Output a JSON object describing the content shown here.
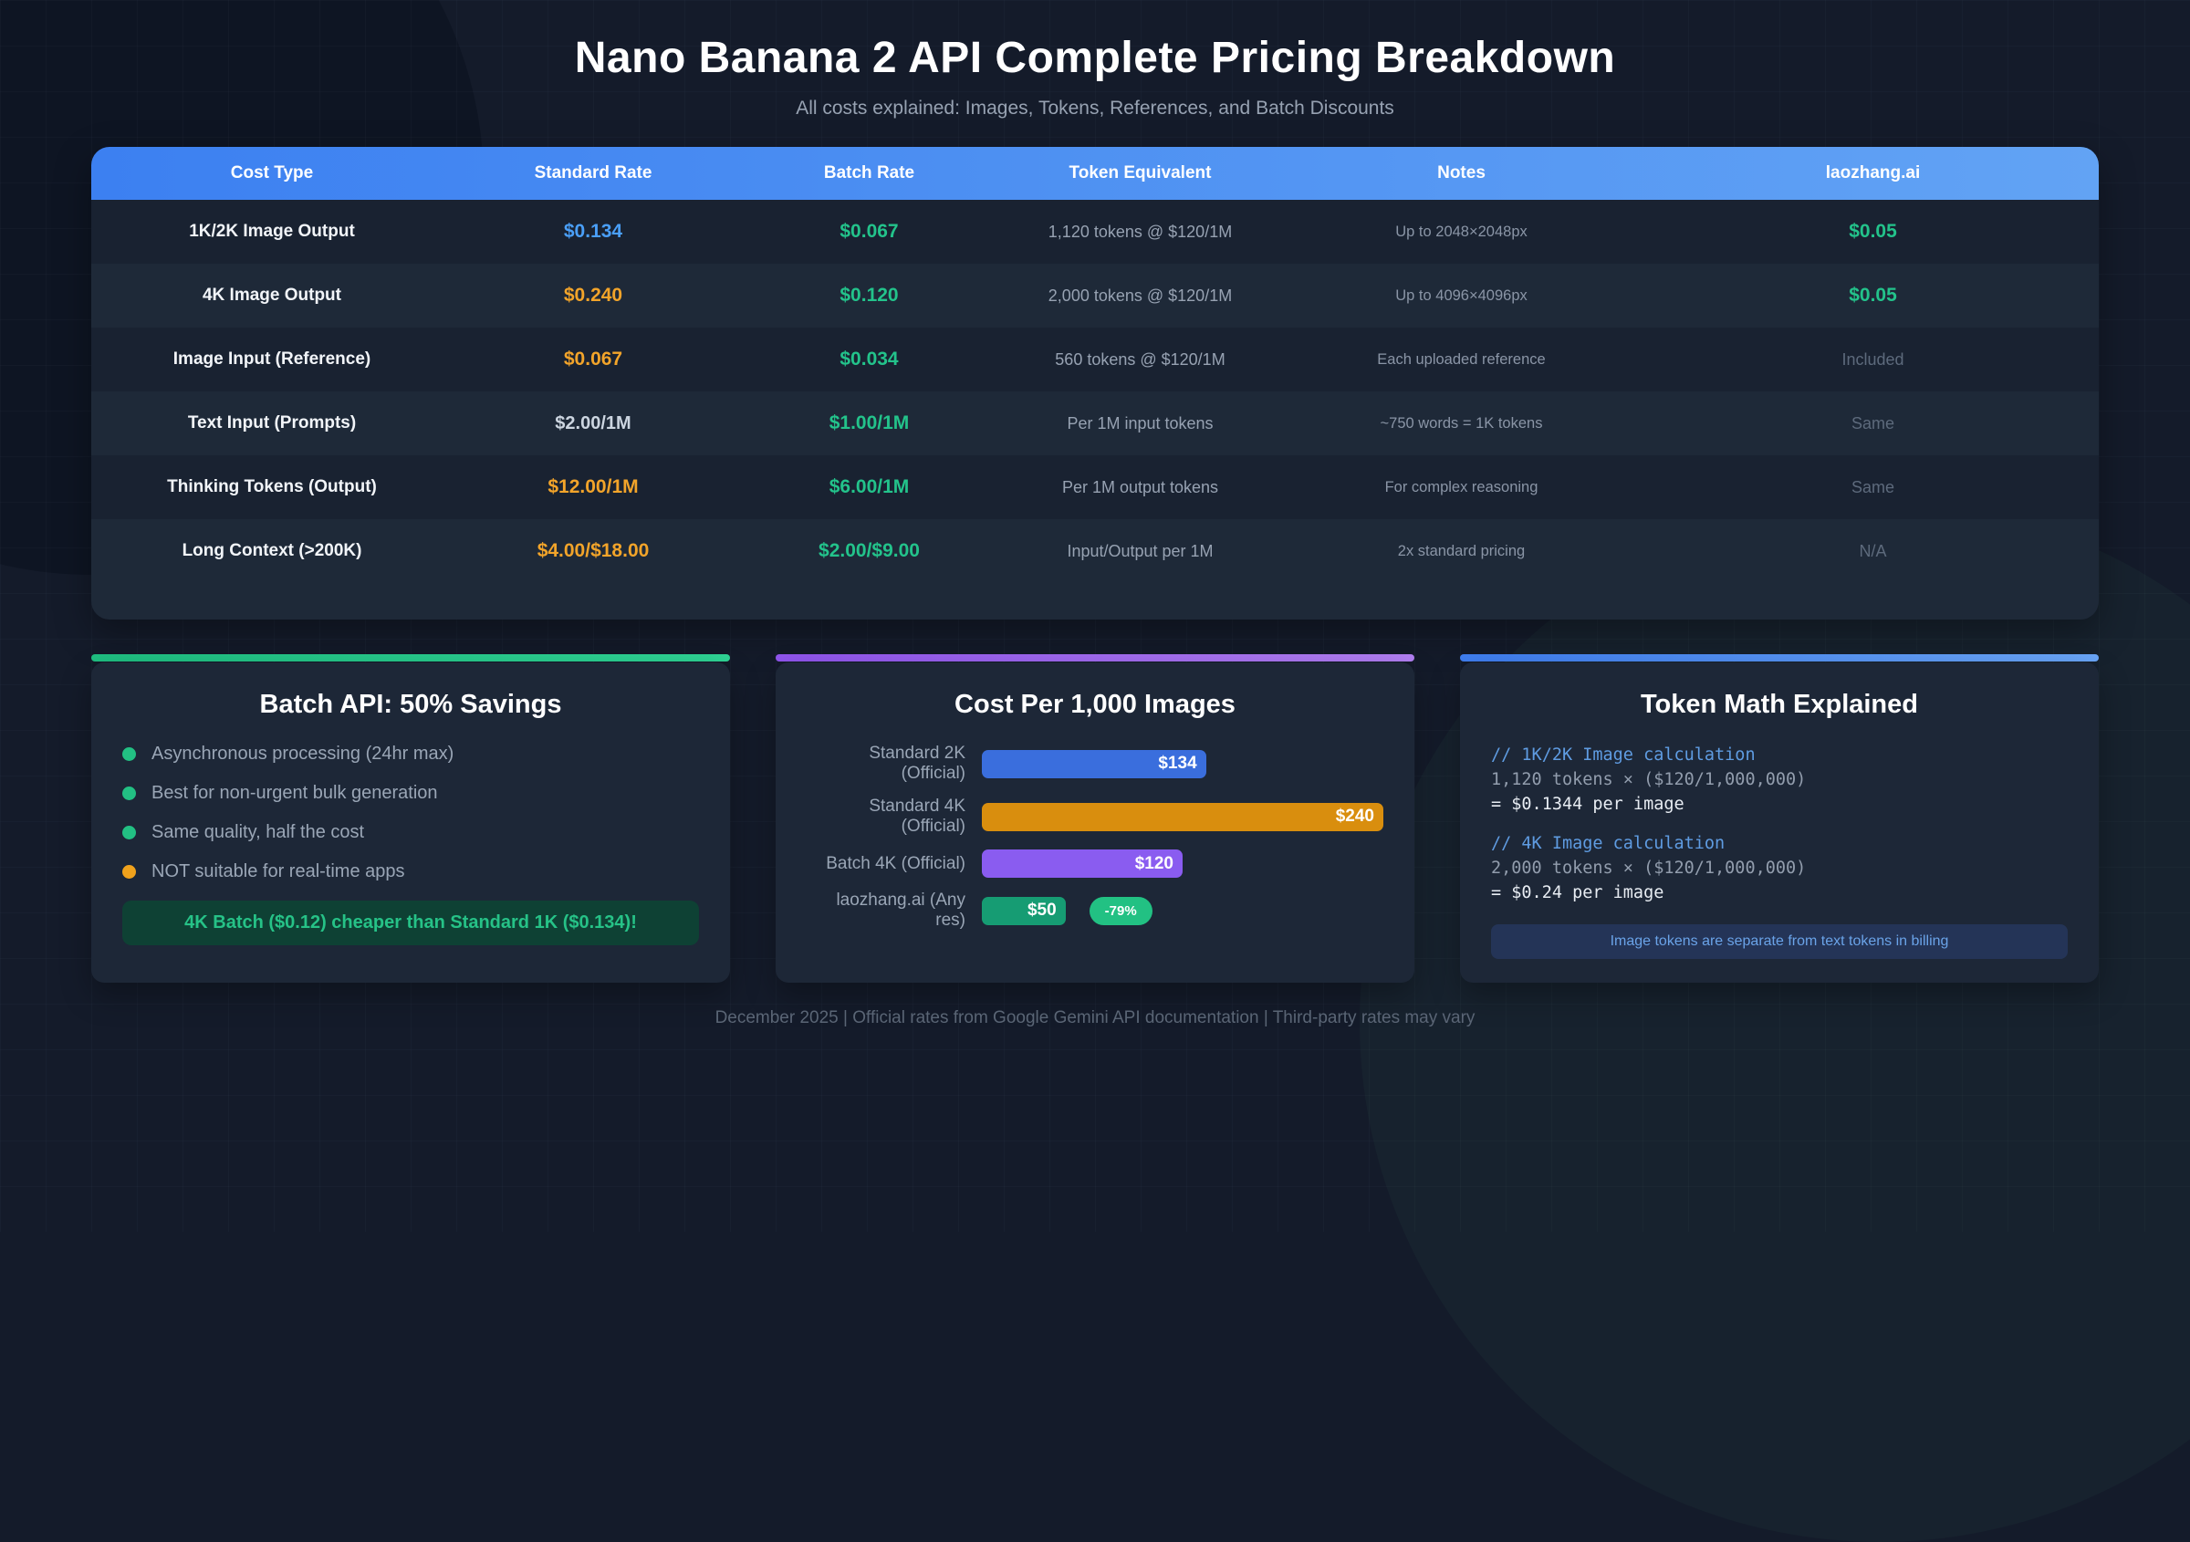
{
  "page": {
    "title": "Nano Banana 2 API Complete Pricing Breakdown",
    "subtitle": "All costs explained: Images, Tokens, References, and Batch Discounts",
    "footer": "December 2025 | Official rates from Google Gemini API documentation | Third-party rates may vary"
  },
  "table": {
    "columns": [
      "Cost Type",
      "Standard Rate",
      "Batch Rate",
      "Token Equivalent",
      "Notes",
      "laozhang.ai"
    ],
    "rows": [
      {
        "cost_type": "1K/2K Image Output",
        "standard_rate": "$0.134",
        "batch_rate": "$0.067",
        "token_equivalent": "1,120 tokens @ $120/1M",
        "notes": "Up to 2048×2048px",
        "laozhang": "$0.05"
      },
      {
        "cost_type": "4K Image Output",
        "standard_rate": "$0.240",
        "batch_rate": "$0.120",
        "token_equivalent": "2,000 tokens @ $120/1M",
        "notes": "Up to 4096×4096px",
        "laozhang": "$0.05"
      },
      {
        "cost_type": "Image Input (Reference)",
        "standard_rate": "$0.067",
        "batch_rate": "$0.034",
        "token_equivalent": "560 tokens @ $120/1M",
        "notes": "Each uploaded reference",
        "laozhang": "Included"
      },
      {
        "cost_type": "Text Input (Prompts)",
        "standard_rate": "$2.00/1M",
        "batch_rate": "$1.00/1M",
        "token_equivalent": "Per 1M input tokens",
        "notes": "~750 words = 1K tokens",
        "laozhang": "Same"
      },
      {
        "cost_type": "Thinking Tokens (Output)",
        "standard_rate": "$12.00/1M",
        "batch_rate": "$6.00/1M",
        "token_equivalent": "Per 1M output tokens",
        "notes": "For complex reasoning",
        "laozhang": "Same"
      },
      {
        "cost_type": "Long Context (>200K)",
        "standard_rate": "$4.00/$18.00",
        "batch_rate": "$2.00/$9.00",
        "token_equivalent": "Input/Output per 1M",
        "notes": "2x standard pricing",
        "laozhang": "N/A"
      }
    ]
  },
  "batch_card": {
    "title": "Batch API: 50% Savings",
    "items": [
      {
        "text": "Asynchronous processing (24hr max)",
        "dot": "#22c083"
      },
      {
        "text": "Best for non-urgent bulk generation",
        "dot": "#22c083"
      },
      {
        "text": "Same quality, half the cost",
        "dot": "#22c083"
      },
      {
        "text": "NOT suitable for real-time apps",
        "dot": "#f0a21c"
      }
    ],
    "highlight": "4K Batch ($0.12) cheaper than Standard 1K ($0.134)!"
  },
  "chart_data": {
    "type": "bar",
    "orientation": "horizontal",
    "title": "Cost Per 1,000 Images",
    "categories": [
      "Standard 2K (Official)",
      "Standard 4K (Official)",
      "Batch 4K (Official)",
      "laozhang.ai (Any res)"
    ],
    "values": [
      134,
      240,
      120,
      50
    ],
    "value_labels": [
      "$134",
      "$240",
      "$120",
      "$50"
    ],
    "bar_colors": [
      "#3a6edd",
      "#d98e0e",
      "#8a5cf0",
      "#169c73"
    ],
    "xlim": [
      0,
      240
    ],
    "grid": false,
    "badge": {
      "text": "-79%",
      "row_index": 3,
      "color": "#22c183"
    }
  },
  "token_card": {
    "title": "Token Math Explained",
    "blocks": [
      {
        "comment": "// 1K/2K Image calculation",
        "calc": "1,120 tokens × ($120/1,000,000)",
        "result": "= $0.1344 per image"
      },
      {
        "comment": "// 4K Image calculation",
        "calc": "2,000 tokens × ($120/1,000,000)",
        "result": "= $0.24 per image"
      }
    ],
    "note": "Image tokens are separate from text tokens in billing"
  },
  "colors": {
    "header_gradient_start": "#3c80f1",
    "header_gradient_end": "#62a3f4",
    "accent_green": "#25c085",
    "accent_purple": "#a263f2",
    "accent_blue": "#4b8df5",
    "value_blue": "#4a9ff8",
    "value_green": "#23c38b",
    "value_orange": "#f2a42a",
    "background": "#141b2a"
  }
}
